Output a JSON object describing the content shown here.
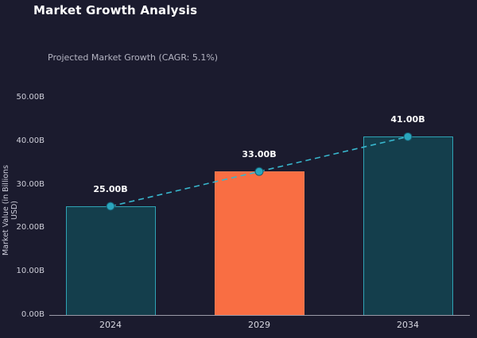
{
  "title": "Market Growth Analysis",
  "subtitle": "Projected Market Growth (CAGR: 5.1%)",
  "chart_data": {
    "type": "bar",
    "title": "Market Growth Analysis",
    "subtitle": "Projected Market Growth (CAGR: 5.1%)",
    "categories": [
      "2024",
      "2029",
      "2034"
    ],
    "values": [
      25,
      33,
      41
    ],
    "value_labels": [
      "25.00B",
      "33.00B",
      "41.00B"
    ],
    "xlabel": "",
    "ylabel": "Market Value (in Billions USD)",
    "ylim": [
      0,
      50
    ],
    "yticks": [
      0,
      10,
      20,
      30,
      40,
      50
    ],
    "ytick_labels": [
      "0.00B",
      "10.00B",
      "20.00B",
      "30.00B",
      "40.00B",
      "50.00B"
    ],
    "grid": false,
    "legend": false,
    "trend_line": true,
    "bar_colors": [
      "#143e4c",
      "#f96e43",
      "#143e4c"
    ],
    "bar_border_colors": [
      "#2fa3b5",
      "#f97a50",
      "#2fa3b5"
    ],
    "line_color": "#38b6cd",
    "marker_fill": "#2aa6be",
    "marker_stroke": "#15586b"
  },
  "colors": {
    "background": "#1b1b2e",
    "title_text": "#ffffff",
    "muted_text": "#b4b4c2",
    "axis_line": "#9a9aa8"
  }
}
